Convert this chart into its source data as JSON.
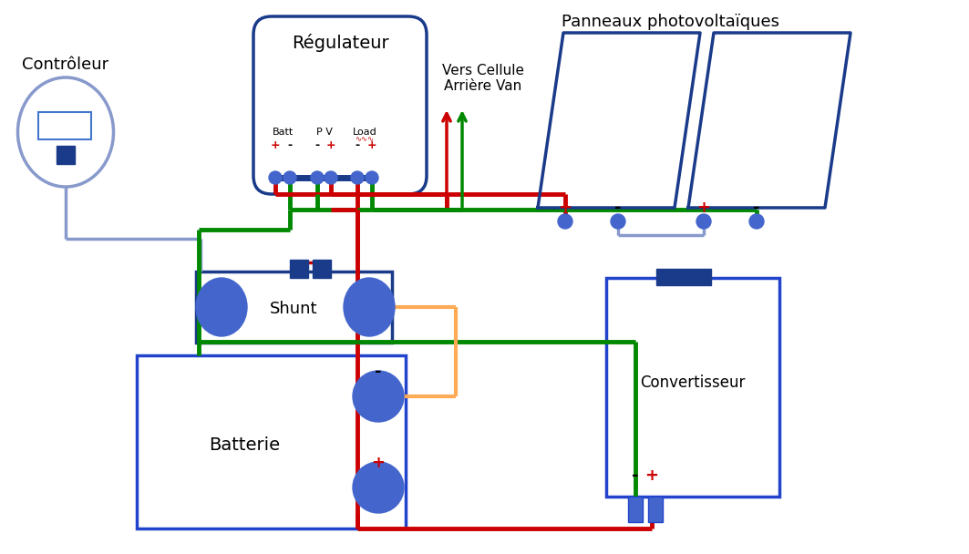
{
  "bg_color": "#ffffff",
  "blue": "#1a3a8a",
  "blue_m": "#2244cc",
  "blue_l": "#8899cc",
  "blue_c": "#4466cc",
  "red": "#cc0000",
  "green": "#008800",
  "orange": "#ffaa55",
  "title_solar": "Panneaux photovoltaïques",
  "label_reg": "Régulateur",
  "label_ctrl": "Contrôleur",
  "label_shunt": "Shunt",
  "label_batt": "Batterie",
  "label_conv": "Convertisseur",
  "label_vers": "Vers Cellule\nArrière Van",
  "label_batt_term": "Batt",
  "label_pv_term": "P V",
  "label_load_term": "Load"
}
